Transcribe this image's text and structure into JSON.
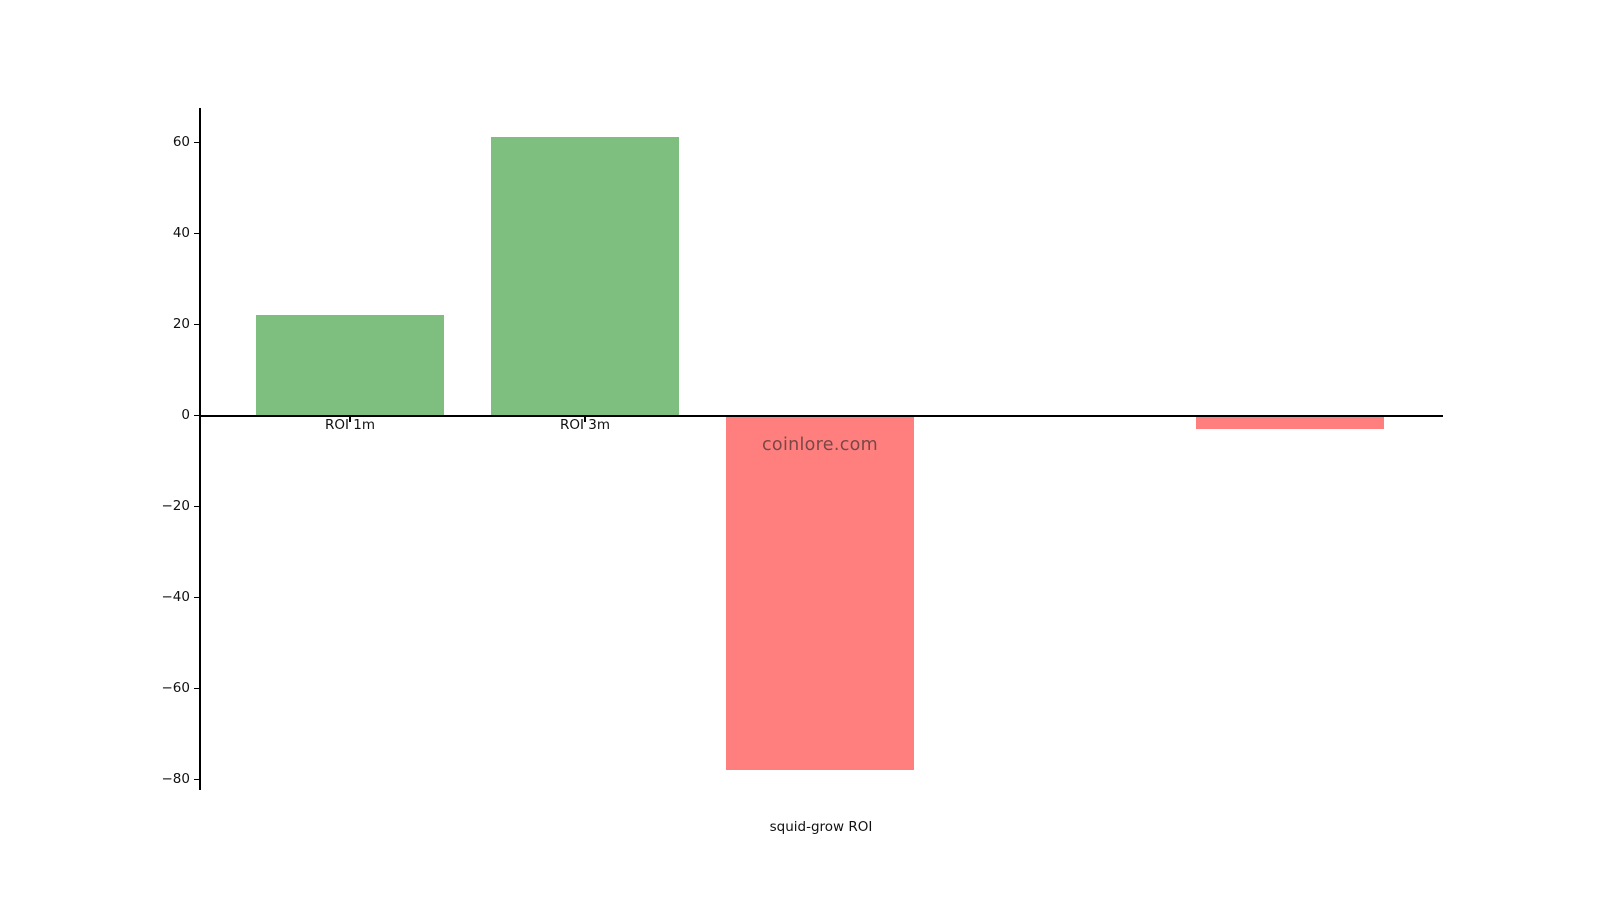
{
  "chart_data": {
    "type": "bar",
    "title": "",
    "xlabel": "squid-grow ROI",
    "ylabel": "",
    "watermark": "coinlore.com",
    "categories": [
      "ROI 1m",
      "ROI 3m",
      "",
      "",
      ""
    ],
    "values": [
      22,
      61,
      -78,
      0,
      -3
    ],
    "y_ticks": [
      60,
      40,
      20,
      0,
      -20,
      -40,
      -60,
      -80
    ],
    "ylim": [
      -82,
      67
    ],
    "grid": false,
    "legend": null,
    "colors": {
      "positive_bar": "#7ebe7e",
      "negative_bar": "#ff7f7f",
      "axis": "#000000",
      "tick_text": "#111111",
      "watermark_text": "#7a4646",
      "background": "#ffffff"
    }
  }
}
